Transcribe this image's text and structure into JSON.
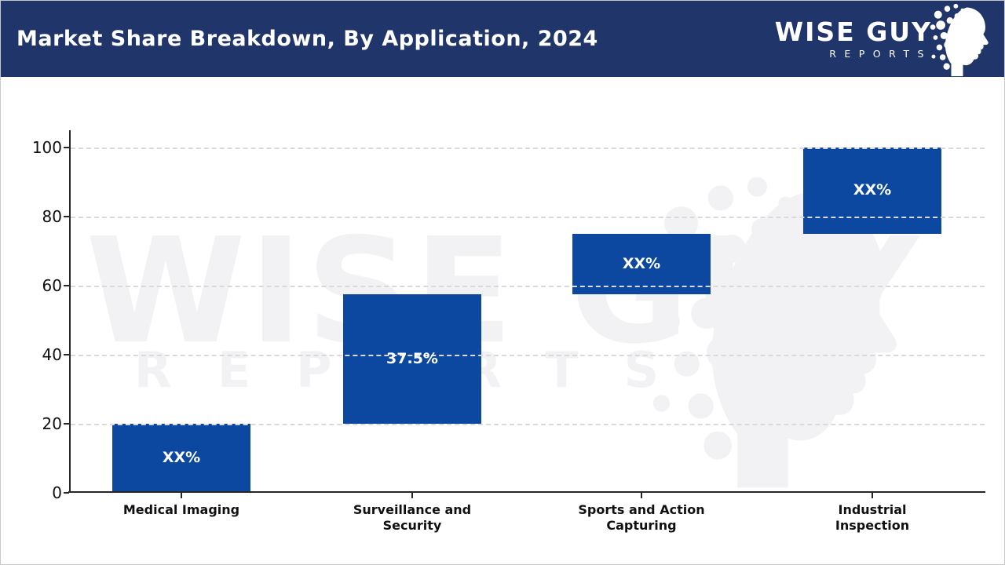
{
  "header": {
    "title": "Market Share Breakdown, By Application, 2024",
    "brand_line1": "WISE GUY",
    "brand_line2": "REPORTS",
    "bg_color": "#20366b"
  },
  "watermark": {
    "line1": "WISE GUY",
    "line2": "REPORTS"
  },
  "chart_data": {
    "type": "bar",
    "subtype": "waterfall",
    "title": "Market Share Breakdown, By Application, 2024",
    "categories": [
      "Medical Imaging",
      "Surveillance and\nSecurity",
      "Sports and Action\nCapturing",
      "Industrial\nInspection"
    ],
    "series": [
      {
        "name": "Market Share (%)",
        "segment_starts": [
          0,
          20,
          57.5,
          75
        ],
        "segment_ends": [
          20,
          57.5,
          75,
          100
        ],
        "values": [
          20,
          37.5,
          17.5,
          25
        ]
      }
    ],
    "bar_value_labels": [
      "XX%",
      "37.5%",
      "XX%",
      "XX%"
    ],
    "xlabel": "",
    "ylabel": "",
    "yticks": [
      0,
      20,
      40,
      60,
      80,
      100
    ],
    "ylim": [
      0,
      105
    ],
    "grid": "horizontal-dashed",
    "legend": "none",
    "bar_color": "#0d48a0",
    "grid_color": "#d9d9d9",
    "axis_color": "#262626"
  }
}
